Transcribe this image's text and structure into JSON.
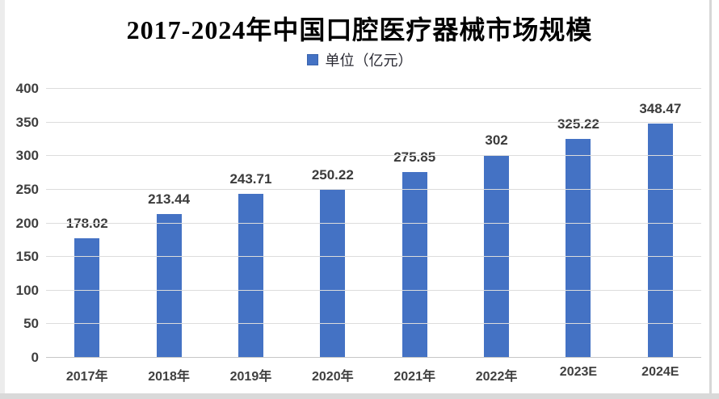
{
  "page": {
    "background": "#ffffff"
  },
  "chart_data": {
    "type": "bar",
    "title": "2017-2024年中国口腔医疗器械市场规模",
    "legend": {
      "label": "单位（亿元）",
      "position": "top",
      "swatch_color": "#4472C4"
    },
    "categories": [
      "2017年",
      "2018年",
      "2019年",
      "2020年",
      "2021年",
      "2022年",
      "2023E",
      "2024E"
    ],
    "values": [
      178.02,
      213.44,
      243.71,
      250.22,
      275.85,
      302,
      325.22,
      348.47
    ],
    "value_labels": [
      "178.02",
      "213.44",
      "243.71",
      "250.22",
      "275.85",
      "302",
      "325.22",
      "348.47"
    ],
    "ylim": [
      0,
      400
    ],
    "yticks": [
      0,
      50,
      100,
      150,
      200,
      250,
      300,
      350,
      400
    ],
    "grid": true,
    "xlabel": "",
    "ylabel": "",
    "colors": {
      "bar": "#4472C4",
      "gridline": "#DCDCDC",
      "axis_text": "#3F3F3F",
      "data_label": "#3B3B3B",
      "title_text": "#000000"
    }
  }
}
